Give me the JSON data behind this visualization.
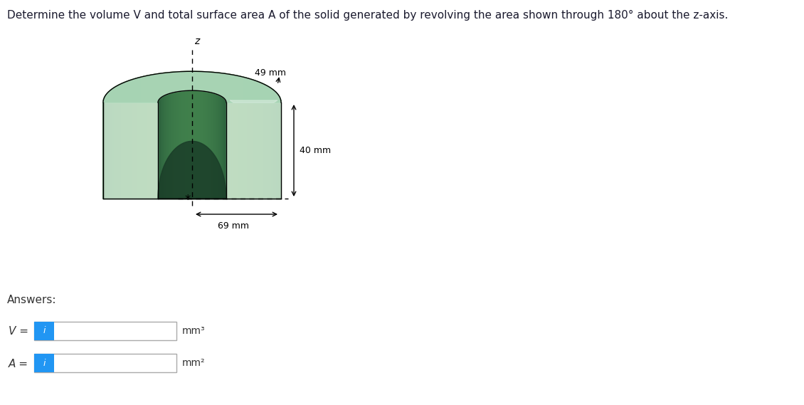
{
  "title": "Determine the volume V and total surface area A of the solid generated by revolving the area shown through 180° about the z-axis.",
  "title_fontsize": 11,
  "answers_label": "Answers:",
  "V_label": "V =",
  "A_label": "A =",
  "V_unit": "mm³",
  "A_unit": "mm²",
  "dim1_label": "49 mm",
  "dim2_label": "40 mm",
  "dim3_label": "69 mm",
  "z_label": "z",
  "blue_color": "#2196F3",
  "i_label": "i",
  "box_bg": "#ffffff",
  "box_border": "#cccccc",
  "background": "#ffffff",
  "text_color": "#1a1a2e",
  "answer_text_color": "#333333",
  "solid_colors": {
    "top_light": "#a8d5b5",
    "top_mid": "#6aab7e",
    "dark_inner": "#2d5a3a",
    "outer_dark": "#3a6b47",
    "bottom": "#4a7a58",
    "cut_face": "#c8e6d0",
    "highlight": "#e8f5ec"
  }
}
